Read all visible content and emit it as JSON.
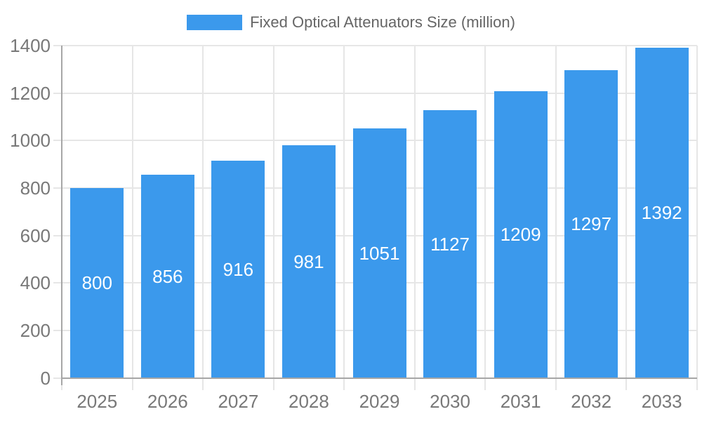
{
  "chart_data": {
    "type": "bar",
    "title": "Fixed Optical Attenuators Size (million)",
    "categories": [
      "2025",
      "2026",
      "2027",
      "2028",
      "2029",
      "2030",
      "2031",
      "2032",
      "2033"
    ],
    "values": [
      800,
      856,
      916,
      981,
      1051,
      1127,
      1209,
      1297,
      1392
    ],
    "xlabel": "",
    "ylabel": "",
    "ylim": [
      0,
      1400
    ],
    "y_ticks": [
      0,
      200,
      400,
      600,
      800,
      1000,
      1200,
      1400
    ],
    "grid": true,
    "legend_position": "top",
    "value_label_style": "inside-center"
  },
  "colors": {
    "bar": "#3B99EC",
    "grid": "#E6E6E6",
    "axis": "#A6A6A6",
    "tick_text": "#787878",
    "legend_text": "#666666",
    "value_label_text": "#FFFFFF",
    "background": "#FFFFFF"
  }
}
